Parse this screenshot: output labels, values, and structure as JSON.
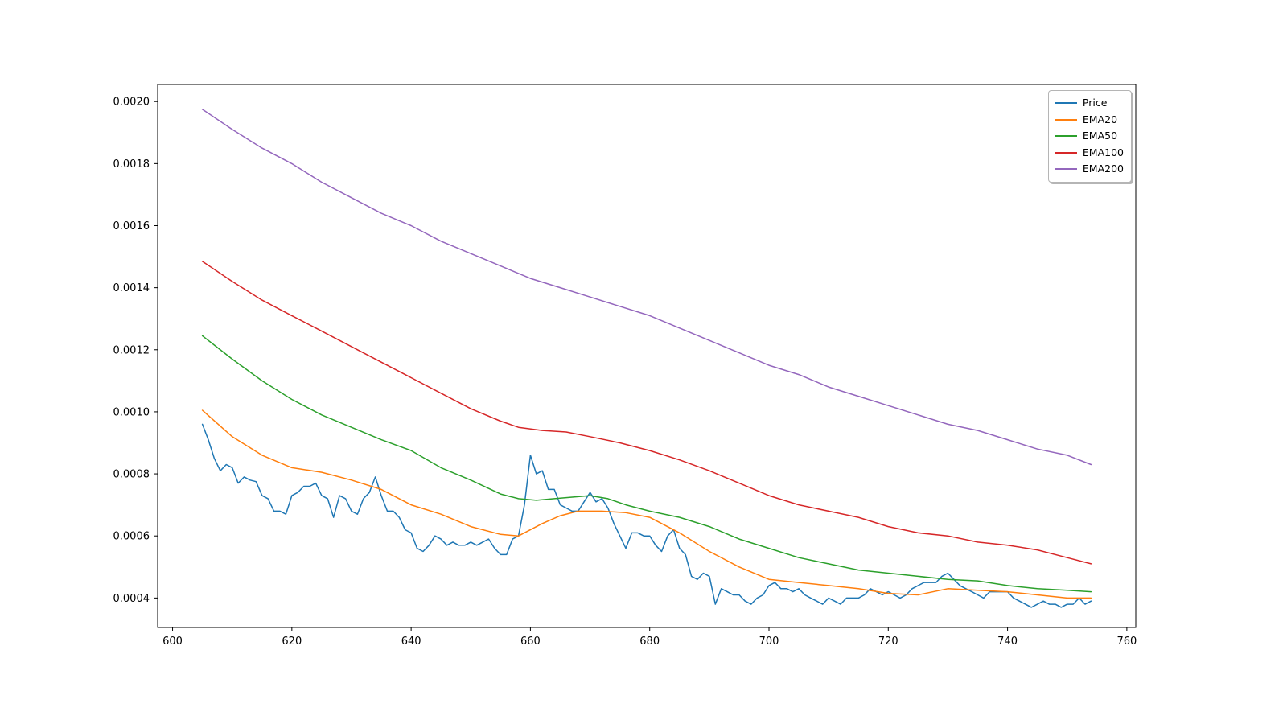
{
  "figure": {
    "background_color": "#ffffff"
  },
  "chart_data": {
    "type": "line",
    "title": "",
    "xlabel": "",
    "ylabel": "",
    "grid": false,
    "legend_position": "upper right",
    "xlim": [
      597.5,
      761.5
    ],
    "ylim": [
      0.000305,
      0.002055
    ],
    "x_ticks": [
      600,
      620,
      640,
      660,
      680,
      700,
      720,
      740,
      760
    ],
    "y_ticks": [
      0.0004,
      0.0006,
      0.0008,
      0.001,
      0.0012,
      0.0014,
      0.0016,
      0.0018,
      0.002
    ],
    "series": [
      {
        "name": "Price",
        "color": "#1f77b4",
        "x_start": 605,
        "x_step": 1,
        "y": [
          0.00096,
          0.00091,
          0.00085,
          0.00081,
          0.00083,
          0.00082,
          0.00077,
          0.00079,
          0.00078,
          0.000775,
          0.00073,
          0.00072,
          0.00068,
          0.00068,
          0.00067,
          0.00073,
          0.00074,
          0.00076,
          0.00076,
          0.00077,
          0.00073,
          0.00072,
          0.00066,
          0.00073,
          0.00072,
          0.00068,
          0.00067,
          0.00072,
          0.00074,
          0.00079,
          0.00073,
          0.00068,
          0.00068,
          0.00066,
          0.00062,
          0.00061,
          0.00056,
          0.00055,
          0.00057,
          0.0006,
          0.00059,
          0.00057,
          0.00058,
          0.00057,
          0.00057,
          0.00058,
          0.00057,
          0.00058,
          0.00059,
          0.00056,
          0.00054,
          0.00054,
          0.00059,
          0.0006,
          0.0007,
          0.00086,
          0.0008,
          0.00081,
          0.00075,
          0.00075,
          0.0007,
          0.00069,
          0.00068,
          0.00068,
          0.00071,
          0.00074,
          0.00071,
          0.00072,
          0.00069,
          0.00064,
          0.0006,
          0.00056,
          0.00061,
          0.00061,
          0.0006,
          0.0006,
          0.00057,
          0.00055,
          0.0006,
          0.00062,
          0.00056,
          0.00054,
          0.00047,
          0.00046,
          0.00048,
          0.00047,
          0.00038,
          0.00043,
          0.00042,
          0.00041,
          0.00041,
          0.00039,
          0.00038,
          0.0004,
          0.00041,
          0.00044,
          0.00045,
          0.00043,
          0.00043,
          0.00042,
          0.00043,
          0.00041,
          0.0004,
          0.00039,
          0.00038,
          0.0004,
          0.00039,
          0.00038,
          0.0004,
          0.0004,
          0.0004,
          0.00041,
          0.00043,
          0.00042,
          0.00041,
          0.00042,
          0.00041,
          0.0004,
          0.00041,
          0.00043,
          0.00044,
          0.00045,
          0.00045,
          0.00045,
          0.00047,
          0.00048,
          0.00046,
          0.00044,
          0.00043,
          0.00042,
          0.00041,
          0.0004,
          0.00042,
          0.00042,
          0.00042,
          0.00042,
          0.0004,
          0.00039,
          0.00038,
          0.00037,
          0.00038,
          0.00039,
          0.00038,
          0.00038,
          0.00037,
          0.00038,
          0.00038,
          0.0004,
          0.00038,
          0.00039
        ]
      },
      {
        "name": "EMA20",
        "color": "#ff7f0e",
        "x": [
          605,
          610,
          615,
          620,
          625,
          630,
          635,
          640,
          645,
          650,
          655,
          658,
          662,
          665,
          668,
          672,
          676,
          680,
          685,
          690,
          695,
          700,
          705,
          710,
          715,
          720,
          725,
          730,
          735,
          740,
          745,
          750,
          754
        ],
        "y": [
          0.001005,
          0.00092,
          0.00086,
          0.00082,
          0.000805,
          0.00078,
          0.00075,
          0.0007,
          0.00067,
          0.00063,
          0.000605,
          0.0006,
          0.00064,
          0.000665,
          0.00068,
          0.00068,
          0.000675,
          0.00066,
          0.00061,
          0.00055,
          0.0005,
          0.00046,
          0.00045,
          0.00044,
          0.00043,
          0.000415,
          0.00041,
          0.00043,
          0.000425,
          0.00042,
          0.00041,
          0.0004,
          0.0004
        ]
      },
      {
        "name": "EMA50",
        "color": "#2ca02c",
        "x": [
          605,
          610,
          615,
          620,
          625,
          630,
          635,
          640,
          645,
          650,
          655,
          658,
          661,
          664,
          667,
          670,
          673,
          676,
          680,
          685,
          690,
          695,
          700,
          705,
          710,
          715,
          720,
          725,
          730,
          735,
          740,
          745,
          750,
          754
        ],
        "y": [
          0.001245,
          0.00117,
          0.0011,
          0.00104,
          0.00099,
          0.00095,
          0.00091,
          0.000875,
          0.00082,
          0.00078,
          0.000735,
          0.00072,
          0.000715,
          0.00072,
          0.000725,
          0.00073,
          0.00072,
          0.0007,
          0.00068,
          0.00066,
          0.00063,
          0.00059,
          0.00056,
          0.00053,
          0.00051,
          0.00049,
          0.00048,
          0.00047,
          0.00046,
          0.000455,
          0.00044,
          0.00043,
          0.000425,
          0.00042
        ]
      },
      {
        "name": "EMA100",
        "color": "#d62728",
        "x": [
          605,
          610,
          615,
          620,
          625,
          630,
          635,
          640,
          645,
          650,
          655,
          658,
          662,
          666,
          670,
          675,
          680,
          685,
          690,
          695,
          700,
          705,
          710,
          715,
          720,
          725,
          730,
          735,
          740,
          745,
          750,
          754
        ],
        "y": [
          0.001485,
          0.00142,
          0.00136,
          0.00131,
          0.00126,
          0.00121,
          0.00116,
          0.00111,
          0.00106,
          0.00101,
          0.00097,
          0.00095,
          0.00094,
          0.000935,
          0.00092,
          0.0009,
          0.000875,
          0.000845,
          0.00081,
          0.00077,
          0.00073,
          0.0007,
          0.00068,
          0.00066,
          0.00063,
          0.00061,
          0.0006,
          0.00058,
          0.00057,
          0.000555,
          0.00053,
          0.00051
        ]
      },
      {
        "name": "EMA200",
        "color": "#9467bd",
        "x": [
          605,
          610,
          615,
          620,
          625,
          630,
          635,
          640,
          645,
          650,
          655,
          660,
          665,
          670,
          675,
          680,
          685,
          690,
          695,
          700,
          705,
          710,
          715,
          720,
          725,
          730,
          735,
          740,
          745,
          750,
          754
        ],
        "y": [
          0.001975,
          0.00191,
          0.00185,
          0.0018,
          0.00174,
          0.00169,
          0.00164,
          0.0016,
          0.00155,
          0.00151,
          0.00147,
          0.00143,
          0.0014,
          0.00137,
          0.00134,
          0.00131,
          0.00127,
          0.00123,
          0.00119,
          0.00115,
          0.00112,
          0.00108,
          0.00105,
          0.00102,
          0.00099,
          0.00096,
          0.00094,
          0.00091,
          0.00088,
          0.00086,
          0.00083
        ]
      }
    ]
  }
}
